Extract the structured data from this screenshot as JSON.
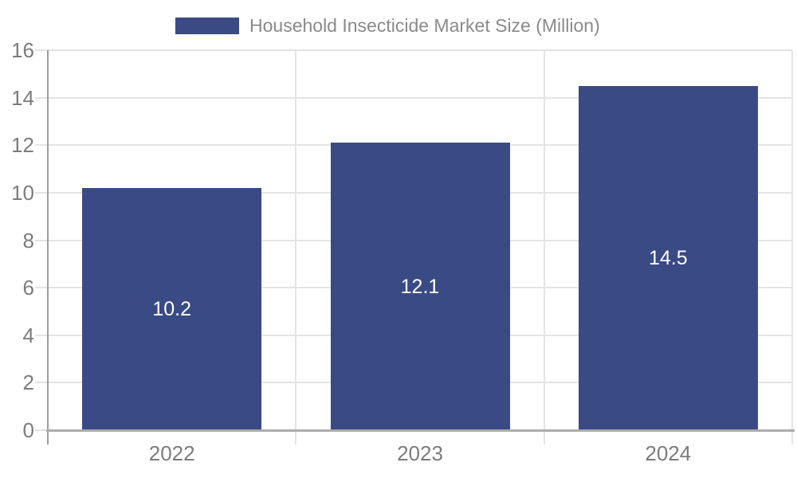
{
  "legend": {
    "label": "Household Insecticide Market Size (Million)"
  },
  "chart_data": {
    "type": "bar",
    "title": "Household Insecticide Market Size (Million)",
    "categories": [
      "2022",
      "2023",
      "2024"
    ],
    "values": [
      10.2,
      12.1,
      14.5
    ],
    "value_labels": [
      "10.2",
      "12.1",
      "14.5"
    ],
    "xlabel": "",
    "ylabel": "",
    "ylim": [
      0,
      16
    ],
    "ytick_step": 2,
    "ytick_labels": [
      "0",
      "2",
      "4",
      "6",
      "8",
      "10",
      "12",
      "14",
      "16"
    ],
    "grid": true,
    "legend_position": "top-center",
    "bar_color": "#3A4A84",
    "value_label_color": "#FFFFFF"
  },
  "colors": {
    "bar": "#3A4A84",
    "gridline": "#E4E4E4",
    "x_axis_line": "#ACACAC",
    "y_axis_line": "#9D9D9D",
    "tick_label_text": "#7C7C7C",
    "legend_text": "#8A8A8A",
    "value_label_text": "#FFFFFF",
    "background": "#FFFFFF"
  }
}
